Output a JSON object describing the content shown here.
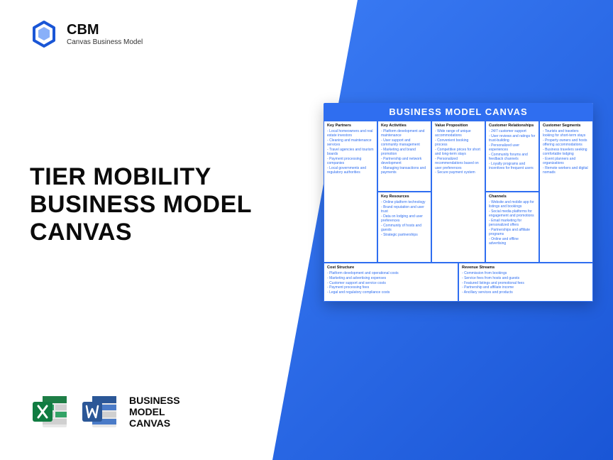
{
  "colors": {
    "brand_blue": "#2f6ef0",
    "bg_gradient_start": "#3b7cf5",
    "bg_gradient_end": "#1a56d6",
    "text_dark": "#0b0b0b",
    "excel_green": "#1e7e46",
    "word_blue": "#2b5797"
  },
  "logo": {
    "abbr": "CBM",
    "sub": "Canvas Business Model"
  },
  "title": "TIER MOBILITY\nBUSINESS MODEL\nCANVAS",
  "bmc_label": "BUSINESS\nMODEL\nCANVAS",
  "canvas": {
    "header": "BUSINESS MODEL CANVAS",
    "key_partners": {
      "title": "Key Partners",
      "items": [
        "Local homeowners and real estate investors",
        "Cleaning and maintenance services",
        "Travel agencies and tourism boards",
        "Payment processing companies",
        "Local governments and regulatory authorities"
      ]
    },
    "key_activities": {
      "title": "Key Activities",
      "items": [
        "Platform development and maintenance",
        "User support and community management",
        "Marketing and brand promotion",
        "Partnership and network development",
        "Managing transactions and payments"
      ]
    },
    "value_proposition": {
      "title": "Value Proposition",
      "items": [
        "Wide range of unique accommodations",
        "Convenient booking process",
        "Competitive prices for short and long-term stays",
        "Personalized recommendations based on user preferences",
        "Secure payment system"
      ]
    },
    "customer_relationships": {
      "title": "Customer Relationships",
      "items": [
        "24/7 customer support",
        "User reviews and ratings for trust-building",
        "Personalized user experiences",
        "Community forums and feedback channels",
        "Loyalty programs and incentives for frequent users"
      ]
    },
    "customer_segments": {
      "title": "Customer Segments",
      "items": [
        "Tourists and travelers looking for short-term stays",
        "Property owners and hosts offering accommodations",
        "Business travelers seeking comfortable lodging",
        "Event planners and organizations",
        "Remote workers and digital nomads"
      ]
    },
    "key_resources": {
      "title": "Key Resources",
      "items": [
        "Online platform technology",
        "Brand reputation and user trust",
        "Data on lodging and user preferences",
        "Community of hosts and guests",
        "Strategic partnerships"
      ]
    },
    "channels": {
      "title": "Channels",
      "items": [
        "Website and mobile app for listings and bookings",
        "Social media platforms for engagement and promotions",
        "Email marketing for personalized offers",
        "Partnerships and affiliate programs",
        "Online and offline advertising"
      ]
    },
    "cost_structure": {
      "title": "Cost Structure",
      "items": [
        "Platform development and operational costs",
        "Marketing and advertising expenses",
        "Customer support and service costs",
        "Payment processing fees",
        "Legal and regulatory compliance costs"
      ]
    },
    "revenue_streams": {
      "title": "Revenue Streams",
      "items": [
        "Commission from bookings",
        "Service fees from hosts and guests",
        "Featured listings and promotional fees",
        "Partnership and affiliate income",
        "Ancillary services and products"
      ]
    }
  }
}
